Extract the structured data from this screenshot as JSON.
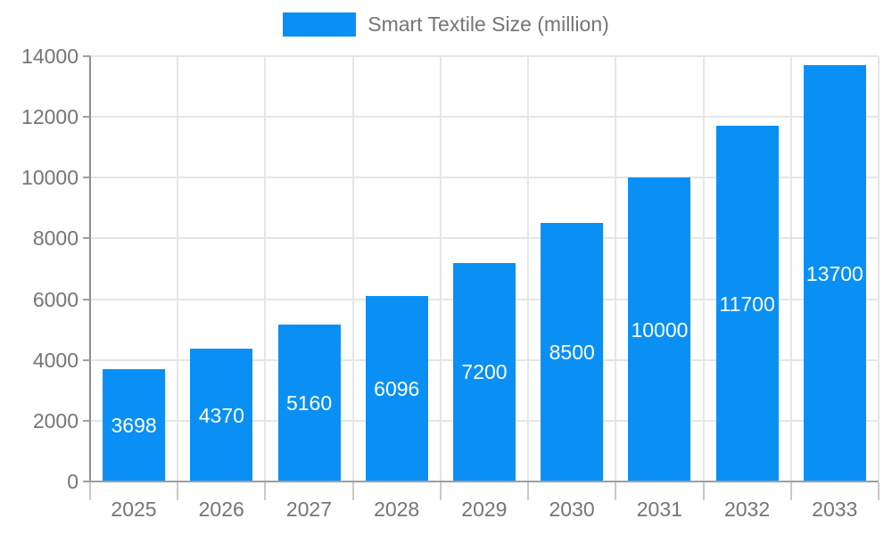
{
  "chart_data": {
    "type": "bar",
    "title": "",
    "legend": {
      "label": "Smart Textile Size (million)",
      "position": "top"
    },
    "categories": [
      "2025",
      "2026",
      "2027",
      "2028",
      "2029",
      "2030",
      "2031",
      "2032",
      "2033"
    ],
    "values": [
      3698,
      4370,
      5160,
      6096,
      7200,
      8500,
      10000,
      11700,
      13700
    ],
    "value_labels": [
      "3698",
      "4370",
      "5160",
      "6096",
      "7200",
      "8500",
      "10000",
      "11700",
      "13700"
    ],
    "xlabel": "",
    "ylabel": "",
    "ylim": [
      0,
      14000
    ],
    "ytick_step": 2000,
    "ytick_labels": [
      "0",
      "2000",
      "4000",
      "6000",
      "8000",
      "10000",
      "12000",
      "14000"
    ],
    "grid": true,
    "legend_position": "top-center",
    "colors": {
      "bar": "#0a90f5",
      "gridline": "#e6e6e6",
      "axis_line": "#9e9e9e",
      "tick_label": "#757575",
      "value_label": "#ffffff",
      "background": "#ffffff"
    }
  }
}
